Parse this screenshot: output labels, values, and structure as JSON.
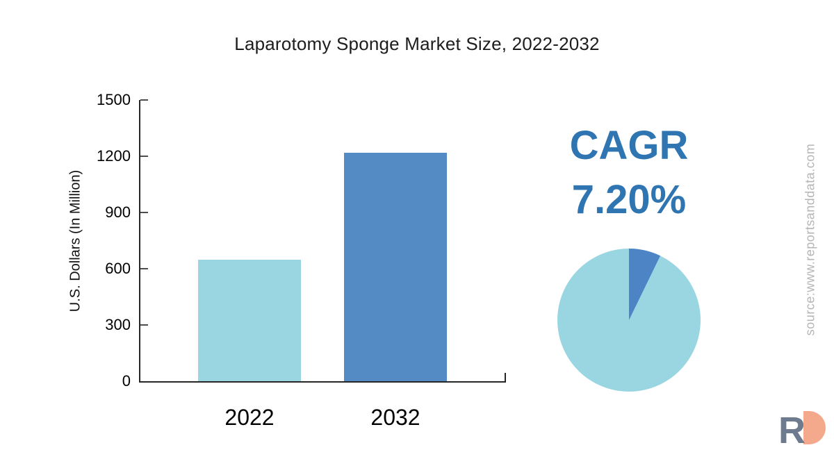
{
  "title": "Laparotomy Sponge Market Size, 2022-2032",
  "chart_data": {
    "type": "bar",
    "title": "Laparotomy Sponge Market Size, 2022-2032",
    "categories": [
      "2022",
      "2032"
    ],
    "values": [
      650,
      1220
    ],
    "xlabel": "",
    "ylabel": "U.S. Dollars (In Million)",
    "ylim": [
      0,
      1500
    ],
    "yticks": [
      0,
      300,
      600,
      900,
      1200,
      1500
    ],
    "grid": false,
    "legend": "none",
    "bar_colors": [
      "#9ad6e2",
      "#548bc5"
    ]
  },
  "cagr": {
    "label": "CAGR",
    "value": "7.20%",
    "percent": 7.2,
    "color": "#2e75b1"
  },
  "pie": {
    "type": "pie",
    "slice_percent": 7.2,
    "main_color": "#9ad6e2",
    "slice_color": "#4d84c6"
  },
  "source": {
    "text": "source:www.reportsanddata.com"
  },
  "logo": {
    "letter": "R",
    "letter_color": "#6e7b8f",
    "shape_color": "#f4a98c"
  },
  "colors": {
    "axis": "#262626",
    "tick_label": "#000000",
    "title": "#1d1d1d",
    "source": "#b5b5b5",
    "background": "#ffffff"
  }
}
